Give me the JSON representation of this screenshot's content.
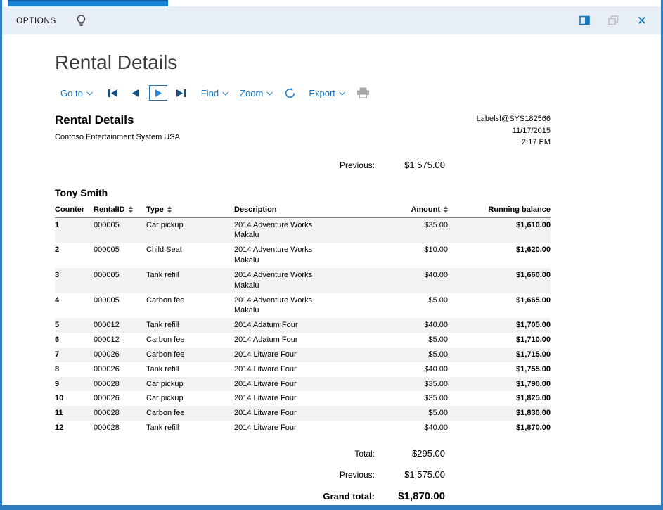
{
  "window": {
    "options_label": "OPTIONS",
    "close_glyph": "✕",
    "icons": [
      "lightbulb-icon",
      "popout-icon",
      "restore-icon",
      "close-icon"
    ]
  },
  "toolbar": {
    "goto_label": "Go to",
    "find_label": "Find",
    "zoom_label": "Zoom",
    "export_label": "Export",
    "icons": [
      "first-page-icon",
      "previous-page-icon",
      "next-page-icon",
      "last-page-icon",
      "refresh-icon",
      "print-icon"
    ]
  },
  "page_title": "Rental Details",
  "report": {
    "title": "Rental Details",
    "company": "Contoso Entertainment System USA",
    "label_reference": "Labels!@SYS182566",
    "date": "11/17/2015",
    "time": "2:17 PM",
    "previous_label": "Previous:",
    "previous_value": "$1,575.00",
    "customer": "Tony Smith",
    "table": {
      "columns": [
        {
          "key": "counter",
          "label": "Counter",
          "sortable": false,
          "align": "left"
        },
        {
          "key": "rental_id",
          "label": "RentalID",
          "sortable": true,
          "align": "left"
        },
        {
          "key": "type",
          "label": "Type",
          "sortable": true,
          "align": "left"
        },
        {
          "key": "description",
          "label": "Description",
          "sortable": false,
          "align": "left"
        },
        {
          "key": "amount",
          "label": "Amount",
          "sortable": true,
          "align": "right"
        },
        {
          "key": "balance",
          "label": "Running balance",
          "sortable": false,
          "align": "right"
        }
      ],
      "rows": [
        {
          "counter": "1",
          "rental_id": "000005",
          "type": "Car pickup",
          "description": "2014 Adventure Works\nMakalu",
          "amount": "$35.00",
          "balance": "$1,610.00"
        },
        {
          "counter": "2",
          "rental_id": "000005",
          "type": "Child Seat",
          "description": "2014 Adventure Works\nMakalu",
          "amount": "$10.00",
          "balance": "$1,620.00"
        },
        {
          "counter": "3",
          "rental_id": "000005",
          "type": "Tank refill",
          "description": "2014 Adventure Works\nMakalu",
          "amount": "$40.00",
          "balance": "$1,660.00"
        },
        {
          "counter": "4",
          "rental_id": "000005",
          "type": "Carbon fee",
          "description": "2014 Adventure Works\nMakalu",
          "amount": "$5.00",
          "balance": "$1,665.00"
        },
        {
          "counter": "5",
          "rental_id": "000012",
          "type": "Tank refill",
          "description": "2014 Adatum Four",
          "amount": "$40.00",
          "balance": "$1,705.00"
        },
        {
          "counter": "6",
          "rental_id": "000012",
          "type": "Carbon fee",
          "description": "2014 Adatum Four",
          "amount": "$5.00",
          "balance": "$1,710.00"
        },
        {
          "counter": "7",
          "rental_id": "000026",
          "type": "Carbon fee",
          "description": "2014 Litware Four",
          "amount": "$5.00",
          "balance": "$1,715.00"
        },
        {
          "counter": "8",
          "rental_id": "000026",
          "type": "Tank refill",
          "description": "2014 Litware Four",
          "amount": "$40.00",
          "balance": "$1,755.00"
        },
        {
          "counter": "9",
          "rental_id": "000028",
          "type": "Car pickup",
          "description": "2014 Litware Four",
          "amount": "$35.00",
          "balance": "$1,790.00"
        },
        {
          "counter": "10",
          "rental_id": "000026",
          "type": "Car pickup",
          "description": "2014 Litware Four",
          "amount": "$35.00",
          "balance": "$1,825.00"
        },
        {
          "counter": "11",
          "rental_id": "000028",
          "type": "Carbon fee",
          "description": "2014 Litware Four",
          "amount": "$5.00",
          "balance": "$1,830.00"
        },
        {
          "counter": "12",
          "rental_id": "000028",
          "type": "Tank refill",
          "description": "2014 Litware Four",
          "amount": "$40.00",
          "balance": "$1,870.00"
        }
      ]
    },
    "totals": [
      {
        "label": "Total:",
        "value": "$295.00",
        "emphasis": false
      },
      {
        "label": "Previous:",
        "value": "$1,575.00",
        "emphasis": false
      },
      {
        "label": "Grand total:",
        "value": "$1,870.00",
        "emphasis": true
      }
    ]
  },
  "colors": {
    "accent_blue": "#1274c4",
    "window_border": "#2c7cc0",
    "tab_blue": "#1583d5",
    "titlebar_bg": "#e7eef6",
    "row_shade": "#f2f2f2"
  }
}
